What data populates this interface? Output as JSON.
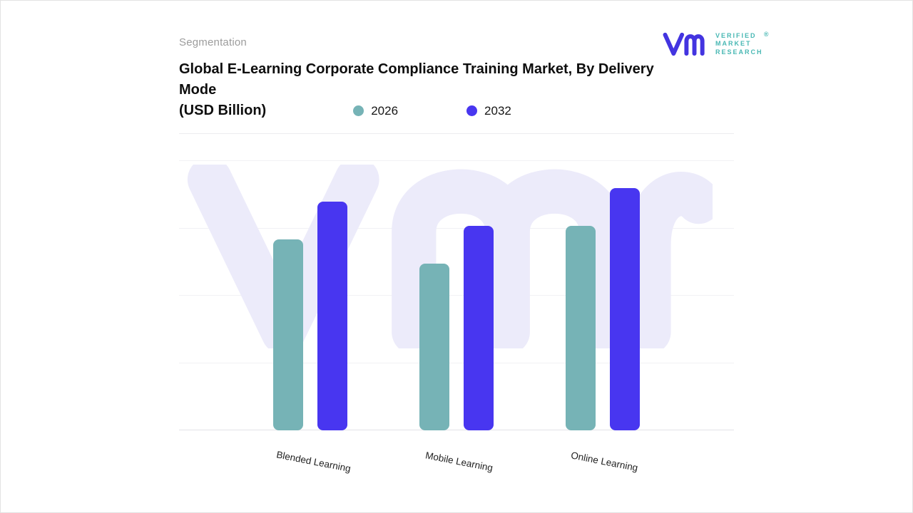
{
  "page": {
    "section_label": "Segmentation",
    "title_main": "Global E-Learning Corporate Compliance Training Market, By Delivery Mode",
    "title_unit": "(USD Billion)"
  },
  "logo": {
    "lines": [
      "VERIFIED",
      "MARKET",
      "RESEARCH"
    ],
    "registered_mark": "®",
    "monogram_color": "#4334e0",
    "text_color": "#49b8b4"
  },
  "chart_data": {
    "type": "bar",
    "title": "Global E-Learning Corporate Compliance Training Market, By Delivery Mode (USD Billion)",
    "categories": [
      "Blended Learning",
      "Mobile Learning",
      "Online Learning"
    ],
    "series": [
      {
        "name": "2026",
        "color": "#76b3b6",
        "values": [
          71,
          62,
          76
        ]
      },
      {
        "name": "2032",
        "color": "#4836f0",
        "values": [
          85,
          76,
          90
        ]
      }
    ],
    "xlabel": "",
    "ylabel": "USD Billion",
    "ylim": [
      0,
      100
    ],
    "y_axis_labels_visible": false,
    "grid": "horizontal",
    "legend_position": "top",
    "watermark_color": "#ecebfa"
  }
}
